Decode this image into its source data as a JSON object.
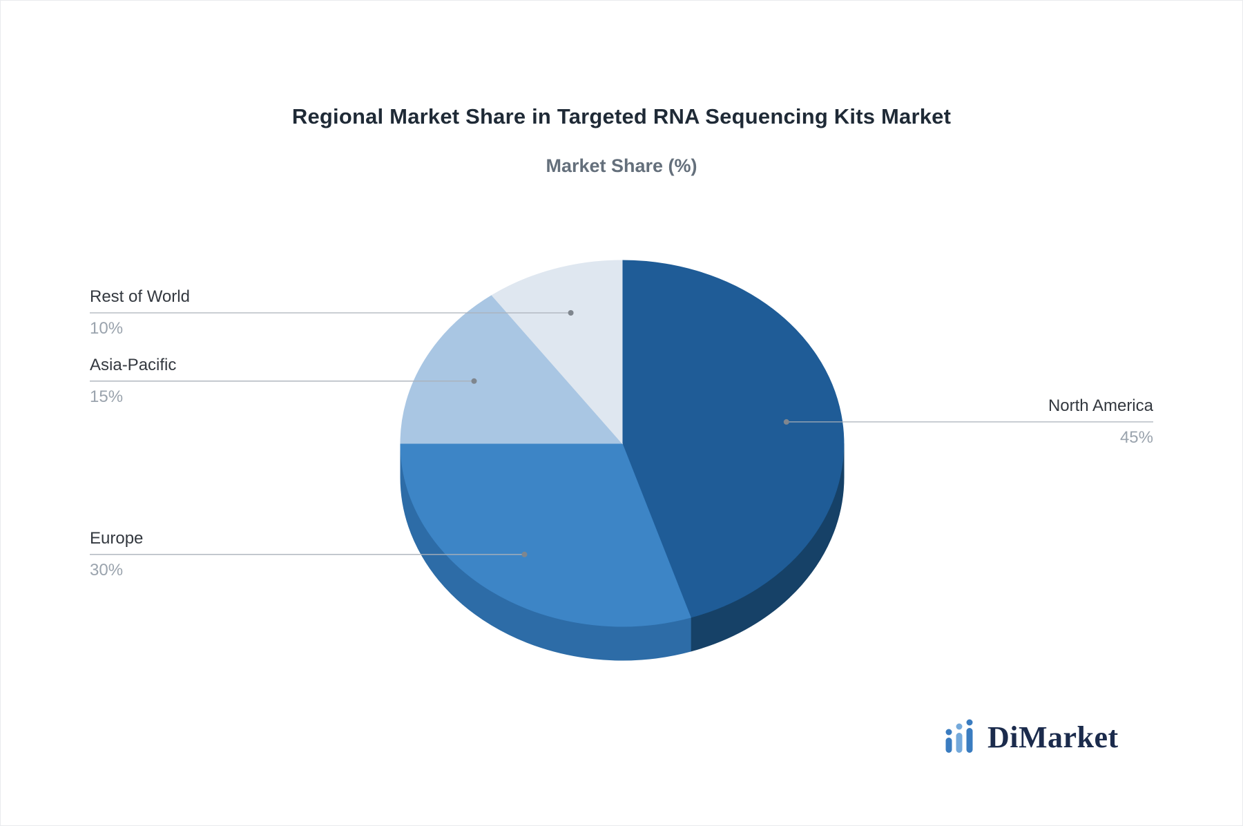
{
  "title": "Regional Market Share in Targeted RNA Sequencing Kits Market",
  "subtitle": "Market Share (%)",
  "brand": {
    "name": "DiMarket"
  },
  "chart_data": {
    "type": "pie",
    "title": "Regional Market Share in Targeted RNA Sequencing Kits Market",
    "subtitle": "Market Share (%)",
    "unit": "%",
    "effect": "3d",
    "start_angle": "top",
    "direction": "clockwise",
    "legend": "none",
    "slices": [
      {
        "label": "North America",
        "value": 45,
        "percent_label": "45%",
        "color": "#1f5c97",
        "side_color": "#164167",
        "label_side": "right"
      },
      {
        "label": "Europe",
        "value": 30,
        "percent_label": "30%",
        "color": "#3d85c6",
        "side_color": "#2d6ca7",
        "label_side": "left"
      },
      {
        "label": "Asia-Pacific",
        "value": 15,
        "percent_label": "15%",
        "color": "#a9c6e3",
        "side_color": "#7fa3c6",
        "label_side": "left"
      },
      {
        "label": "Rest of World",
        "value": 10,
        "percent_label": "10%",
        "color": "#dfe7f0",
        "side_color": "#b6c4d3",
        "label_side": "left"
      }
    ]
  }
}
